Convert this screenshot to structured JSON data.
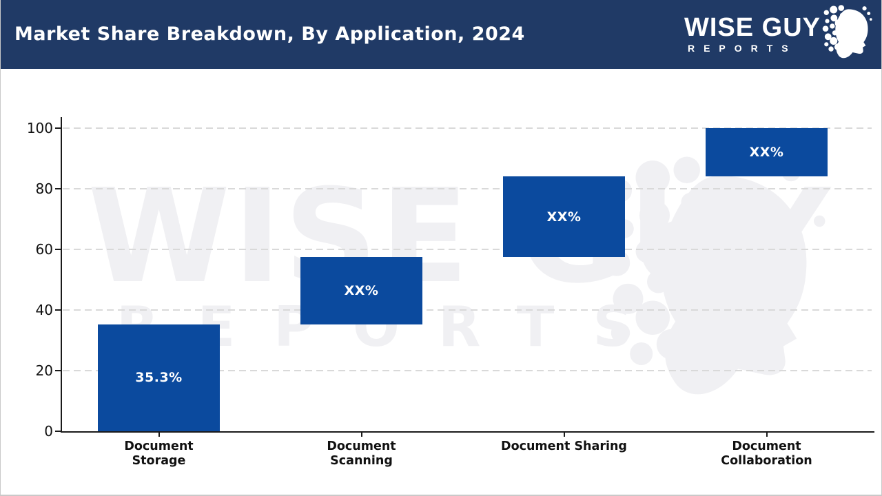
{
  "header": {
    "title": "Market Share Breakdown, By Application, 2024",
    "logo": {
      "name": "WISE GUY",
      "sub": "REPORTS"
    }
  },
  "watermark": {
    "name": "WISE GUY",
    "sub": "REPORTS"
  },
  "colors": {
    "header_bg": "#203a66",
    "bar": "#0b4a9e",
    "gridline": "#d9d9d9",
    "axis": "#1a1a1a",
    "bar_label_text": "#ffffff",
    "watermark": "#f0f0f3"
  },
  "chart_data": {
    "type": "bar",
    "subtype": "waterfall",
    "title": "Market Share Breakdown, By Application, 2024",
    "xlabel": "",
    "ylabel": "",
    "categories": [
      "Document Storage",
      "Document Scanning",
      "Document Sharing",
      "Document Collaboration"
    ],
    "segments": [
      {
        "category": "Document Storage",
        "start": 0,
        "end": 35.3,
        "label": "35.3%"
      },
      {
        "category": "Document Scanning",
        "start": 35.3,
        "end": 57.5,
        "label": "XX%"
      },
      {
        "category": "Document Sharing",
        "start": 57.5,
        "end": 84,
        "label": "XX%"
      },
      {
        "category": "Document Collaboration",
        "start": 84,
        "end": 100,
        "label": "XX%"
      }
    ],
    "yticks": [
      0,
      20,
      40,
      60,
      80,
      100
    ],
    "ylim": [
      0,
      105
    ],
    "grid": "horizontal-dashed",
    "legend": "none"
  }
}
